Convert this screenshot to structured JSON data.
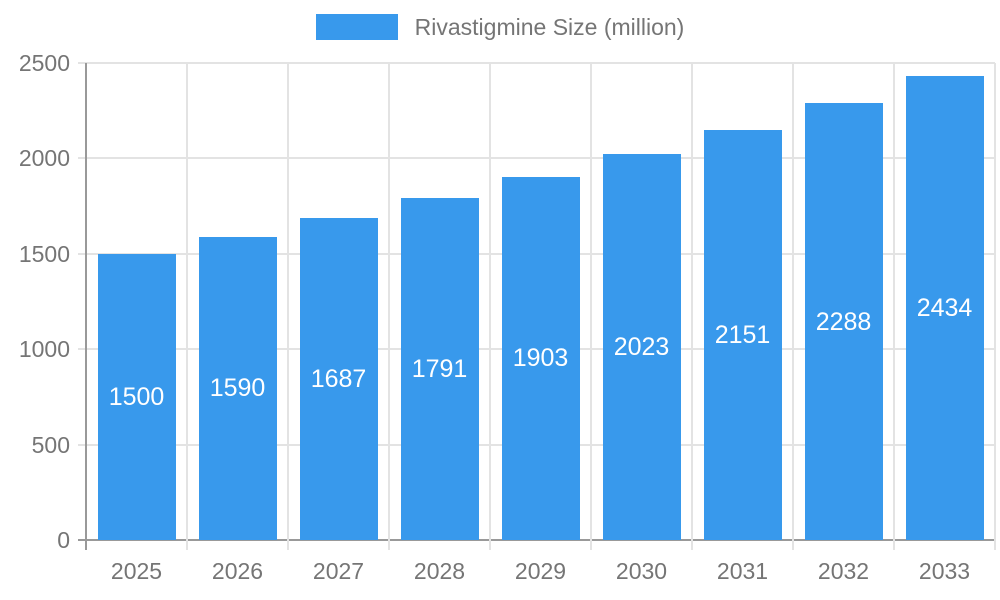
{
  "chart_data": {
    "type": "bar",
    "title": "Rivastigmine Size (million)",
    "legend": {
      "label": "Rivastigmine Size (million)",
      "position": "top"
    },
    "categories": [
      "2025",
      "2026",
      "2027",
      "2028",
      "2029",
      "2030",
      "2031",
      "2032",
      "2033"
    ],
    "series": [
      {
        "name": "Rivastigmine Size (million)",
        "values": [
          1500,
          1590,
          1687,
          1791,
          1903,
          2023,
          2151,
          2288,
          2434
        ]
      }
    ],
    "xlabel": "",
    "ylabel": "",
    "ylim": [
      0,
      2500
    ],
    "yticks": [
      0,
      500,
      1000,
      1500,
      2000,
      2500
    ],
    "grid": true,
    "value_labels": "inside-bar-centered-white",
    "colors": {
      "bar": "#3899EC",
      "axis": "#999999",
      "gridline": "#E3E3E3",
      "tick_label": "#757575",
      "legend_label": "#757575",
      "value_label": "#FFFFFF",
      "background": "#FFFFFF"
    }
  }
}
